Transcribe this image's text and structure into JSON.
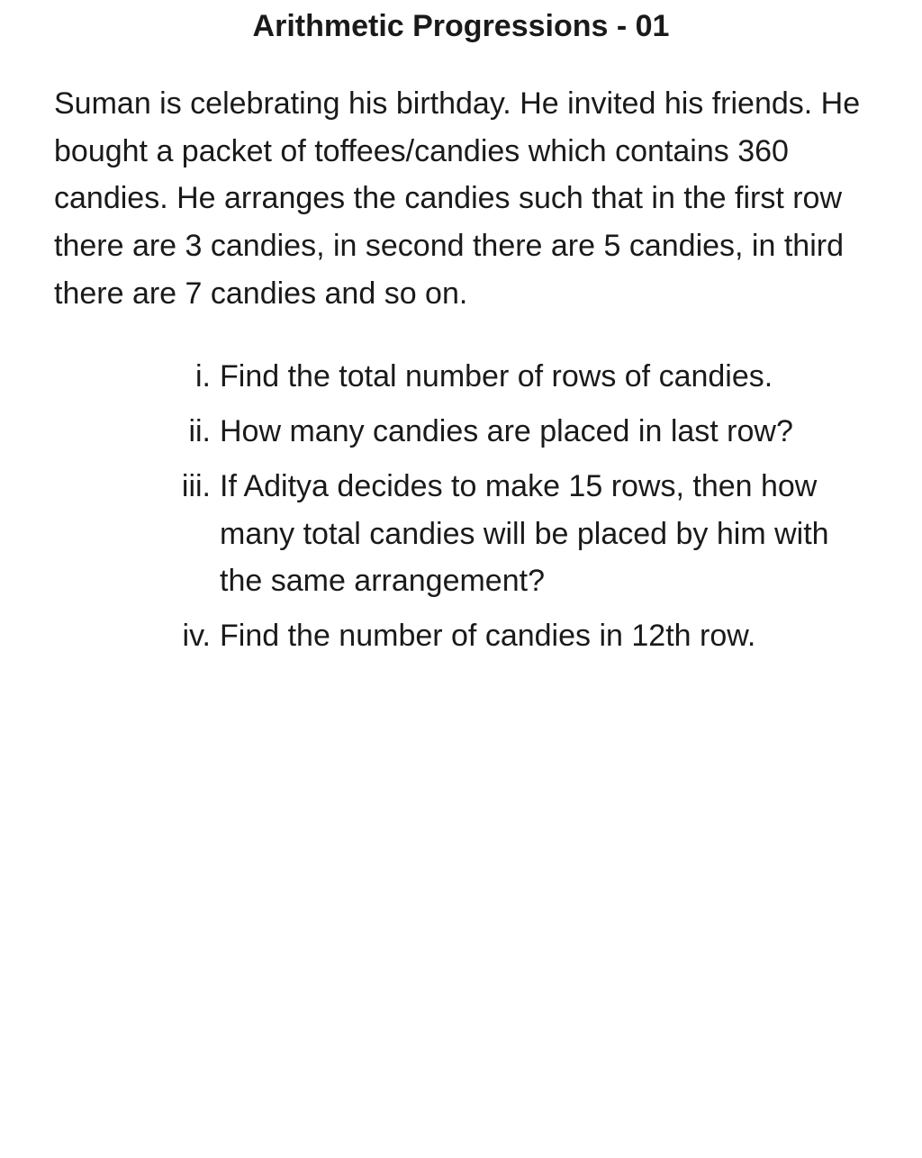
{
  "title": "Arithmetic Progressions - 01",
  "description": "Suman is celebrating his birthday. He invited his friends. He bought a packet of toffees/candies which contains 360 candies. He arranges the candies such that in the first row there are 3 candies, in second there are 5 candies, in third there are 7 candies and so on.",
  "questions": [
    {
      "number": "i.",
      "text": "Find the total number of rows of candies."
    },
    {
      "number": "ii.",
      "text": "How many candies are placed in last row?"
    },
    {
      "number": "iii.",
      "text": "If Aditya decides to make 15 rows, then how many total candies will be placed by him with the same arrangement?"
    },
    {
      "number": "iv.",
      "text": "Find the number of candies in 12th row."
    }
  ],
  "typography": {
    "title_fontsize": 34,
    "title_fontweight": "bold",
    "body_fontsize": 34,
    "line_height": 1.55,
    "font_family": "Arial, Helvetica, sans-serif"
  },
  "colors": {
    "background": "#ffffff",
    "text": "#1a1a1a"
  }
}
